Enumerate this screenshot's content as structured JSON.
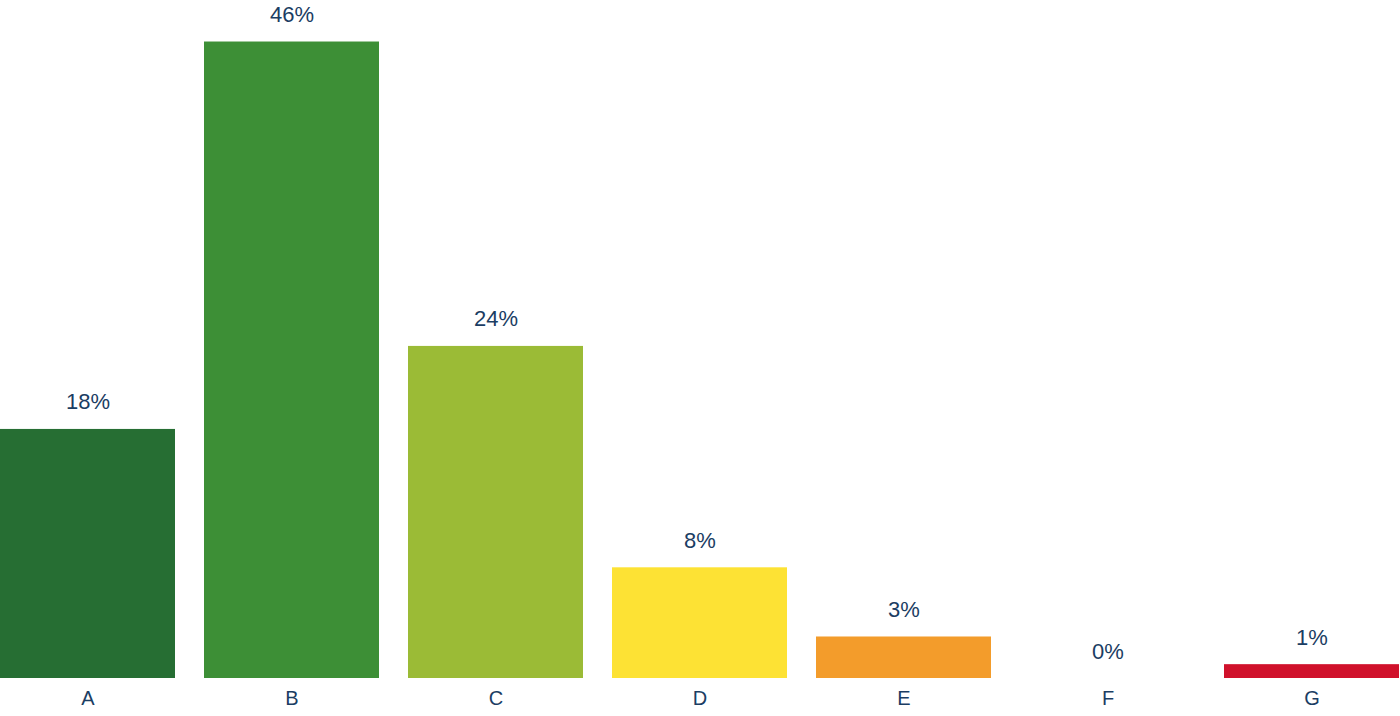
{
  "chart_data": {
    "type": "bar",
    "categories": [
      "A",
      "B",
      "C",
      "D",
      "E",
      "F",
      "G"
    ],
    "values": [
      18,
      46,
      24,
      8,
      3,
      0,
      1
    ],
    "value_labels": [
      "18%",
      "46%",
      "24%",
      "8%",
      "3%",
      "0%",
      "1%"
    ],
    "colors": [
      "#266e33",
      "#3d8f36",
      "#9bbb36",
      "#fde234",
      "#f39c2b",
      "#e8692a",
      "#d0112b"
    ],
    "ylim": [
      0,
      49
    ],
    "data_labels": true,
    "tick_labels": "x",
    "grid": false
  }
}
